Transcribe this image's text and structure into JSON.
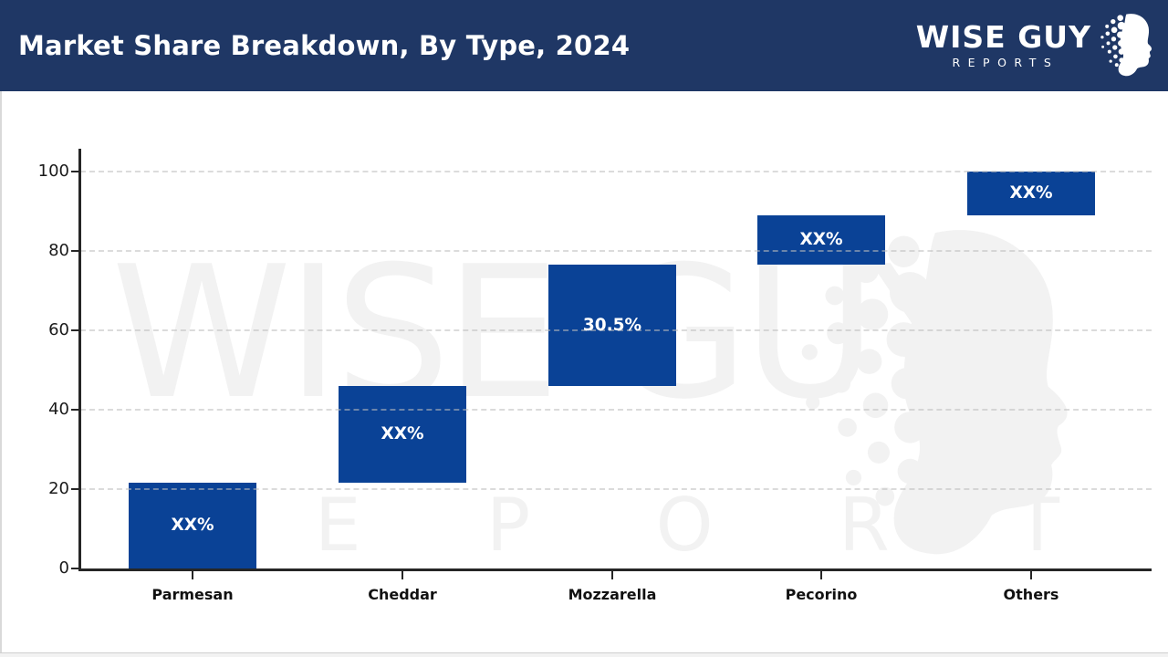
{
  "header": {
    "title": "Market Share Breakdown, By Type, 2024",
    "logo_line1": "WISE GUY",
    "logo_line2": "REPORTS"
  },
  "watermark": {
    "line1": "WISE GUY",
    "line2": "R E P O R T S"
  },
  "colors": {
    "header_bg": "#1F3765",
    "bar": "#0A4296",
    "axis": "#262626",
    "gridline": "#dcdcdc",
    "bar_label": "#ffffff",
    "watermark": "#f2f2f2"
  },
  "chart_data": {
    "type": "bar",
    "subtype": "waterfall-floating-bars",
    "title": "Market Share Breakdown, By Type, 2024",
    "xlabel": "",
    "ylabel": "",
    "categories": [
      "Parmesan",
      "Cheddar",
      "Mozzarella",
      "Pecorino",
      "Others"
    ],
    "segments": [
      {
        "category": "Parmesan",
        "label": "XX%",
        "start": 0,
        "end": 21.5
      },
      {
        "category": "Cheddar",
        "label": "XX%",
        "start": 21.5,
        "end": 46
      },
      {
        "category": "Mozzarella",
        "label": "30.5%",
        "start": 46,
        "end": 76.5
      },
      {
        "category": "Pecorino",
        "label": "XX%",
        "start": 76.5,
        "end": 89
      },
      {
        "category": "Others",
        "label": "XX%",
        "start": 89,
        "end": 100
      }
    ],
    "yticks": [
      0,
      20,
      40,
      60,
      80,
      100
    ],
    "ylim": [
      0,
      105
    ],
    "grid": "horizontal-dashed",
    "legend": "none"
  }
}
